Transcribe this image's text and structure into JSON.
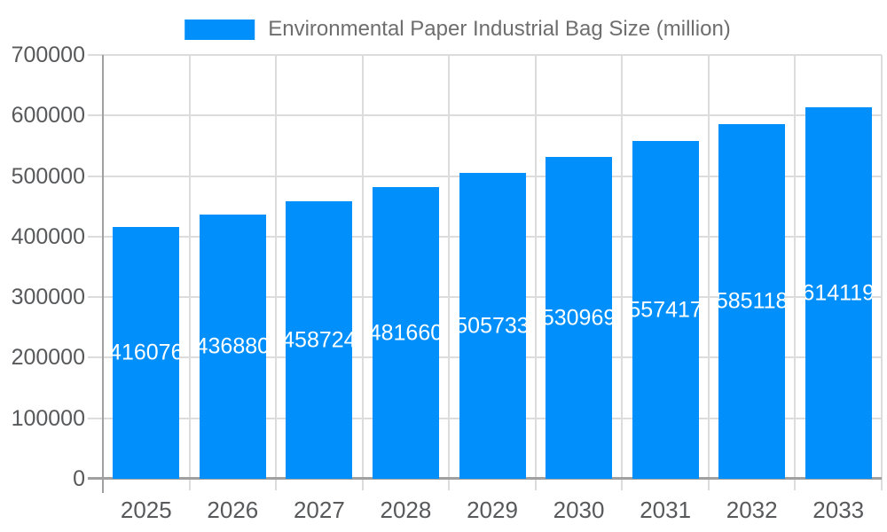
{
  "legend": {
    "label": "Environmental Paper Industrial Bag Size (million)"
  },
  "colors": {
    "bar": "#008ffb",
    "bar_value_label": "#ffffff",
    "gridline": "#dcdcdc",
    "axis_line": "#a0a0a0",
    "axis_label": "#58595b",
    "legend_text": "#6e6e6e",
    "background": "#ffffff"
  },
  "chart_data": {
    "type": "bar",
    "title": "Environmental Paper Industrial Bag Size (million)",
    "categories": [
      "2025",
      "2026",
      "2027",
      "2028",
      "2029",
      "2030",
      "2031",
      "2032",
      "2033"
    ],
    "values": [
      416076,
      436880,
      458724,
      481660,
      505733,
      530969,
      557417,
      585118,
      614119
    ],
    "series": [
      {
        "name": "Environmental Paper Industrial Bag Size (million)",
        "values": [
          416076,
          436880,
          458724,
          481660,
          505733,
          530969,
          557417,
          585118,
          614119
        ]
      }
    ],
    "xlabel": "",
    "ylabel": "",
    "ylim": [
      0,
      700000
    ],
    "ytick_step": 100000,
    "ytick_labels": [
      "0",
      "100000",
      "200000",
      "300000",
      "400000",
      "500000",
      "600000",
      "700000"
    ],
    "grid": true,
    "legend_position": "top",
    "bar_value_labels": [
      "416076",
      "436880",
      "458724",
      "481660",
      "505733",
      "530969",
      "557417",
      "585118",
      "614119"
    ]
  }
}
